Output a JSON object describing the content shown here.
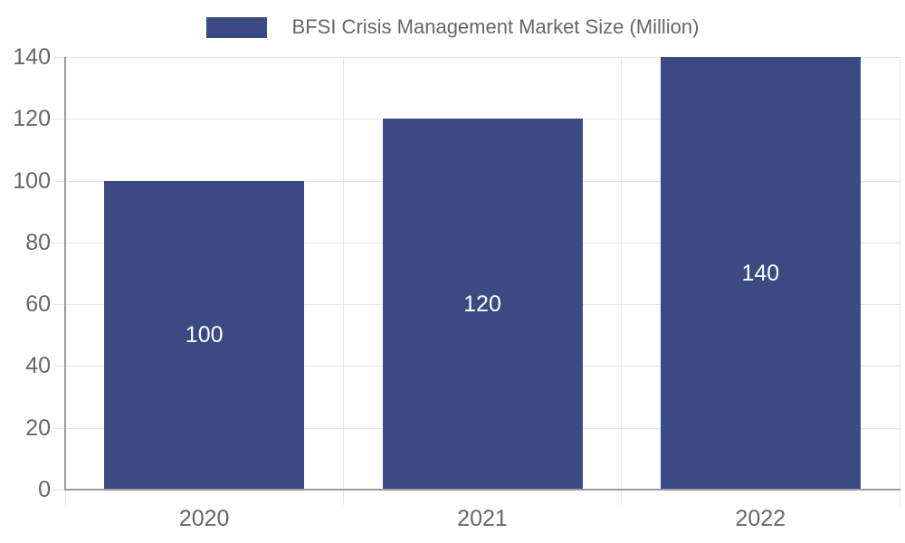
{
  "chart_data": {
    "type": "bar",
    "title": "",
    "series_name": "BFSI Crisis Management Market Size (Million)",
    "categories": [
      "2020",
      "2021",
      "2022"
    ],
    "values": [
      100,
      120,
      140
    ],
    "data_labels": [
      "100",
      "120",
      "140"
    ],
    "xlabel": "",
    "ylabel": "",
    "ylim": [
      0,
      140
    ],
    "yticks": [
      0,
      20,
      40,
      60,
      80,
      100,
      120,
      140
    ],
    "grid": true,
    "legend_position": "top-center",
    "bar_color": "#3A4A82",
    "data_label_color": "#FFFFFF",
    "axis_text_color": "#666666",
    "gridline_color": "#E5E5E5",
    "axis_line_color": "#999999",
    "background_color": "#FFFFFF"
  }
}
